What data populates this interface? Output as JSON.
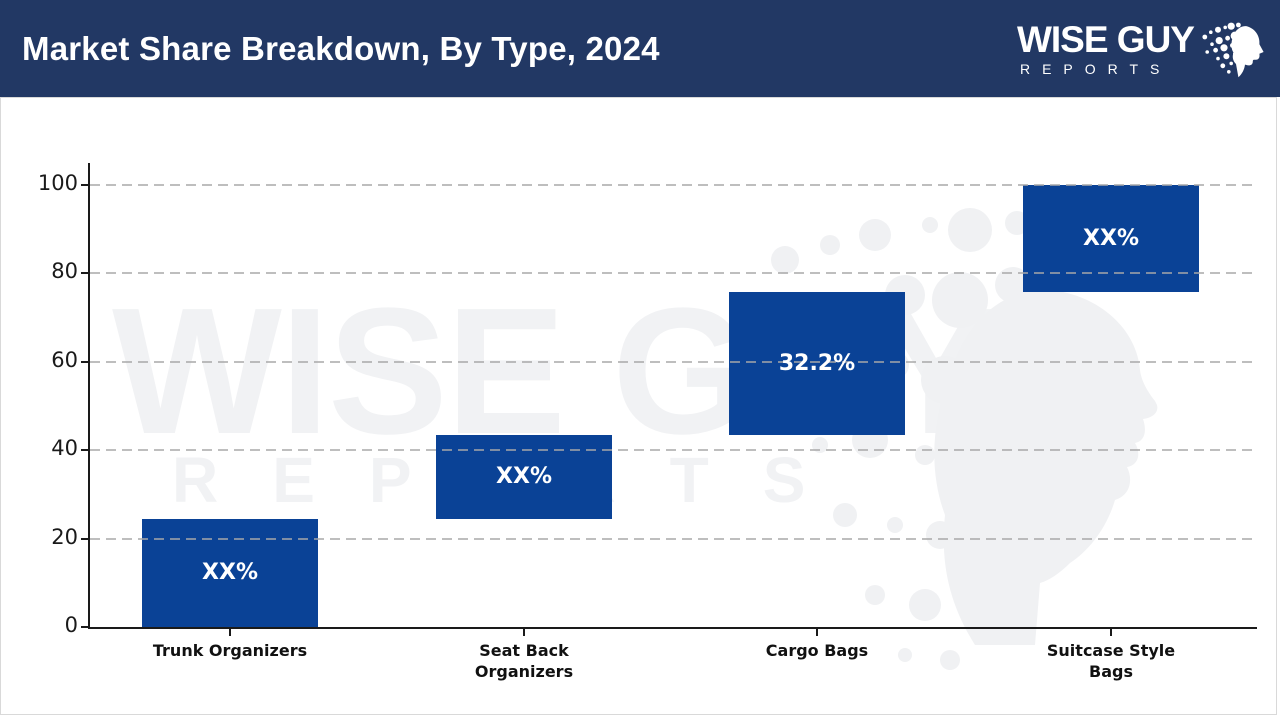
{
  "header": {
    "title": "Market Share Breakdown, By Type, 2024",
    "logo": {
      "line1": "WISE GUY",
      "line2": "REPORTS"
    }
  },
  "watermark": {
    "line1": "WISE GUY",
    "line2": "REPORTS"
  },
  "chart_data": {
    "type": "bar",
    "subtype": "waterfall",
    "title": "Market Share Breakdown, By Type, 2024",
    "xlabel": "",
    "ylabel": "",
    "categories": [
      "Trunk Organizers",
      "Seat Back\nOrganizers",
      "Cargo Bags",
      "Suitcase Style\nBags"
    ],
    "segments": [
      {
        "category": "Trunk Organizers",
        "start": 0,
        "end": 24.5,
        "value": 24.5,
        "label": "XX%"
      },
      {
        "category": "Seat Back Organizers",
        "start": 24.5,
        "end": 43.5,
        "value": 19.0,
        "label": "XX%"
      },
      {
        "category": "Cargo Bags",
        "start": 43.5,
        "end": 75.7,
        "value": 32.2,
        "label": "32.2%"
      },
      {
        "category": "Suitcase Style Bags",
        "start": 75.7,
        "end": 100.0,
        "value": 24.3,
        "label": "XX%"
      }
    ],
    "yticks": [
      0,
      20,
      40,
      60,
      80,
      100
    ],
    "ylim": [
      0,
      105
    ],
    "grid": "horizontal-dashed-over-bars",
    "legend": "none",
    "colors": {
      "bar": "#0a4296",
      "bar_label": "#ffffff",
      "header_bg": "#223864",
      "axis": "#1a1a1a",
      "gridline": "#a8a8a8",
      "watermark": "#f1f2f4"
    }
  }
}
